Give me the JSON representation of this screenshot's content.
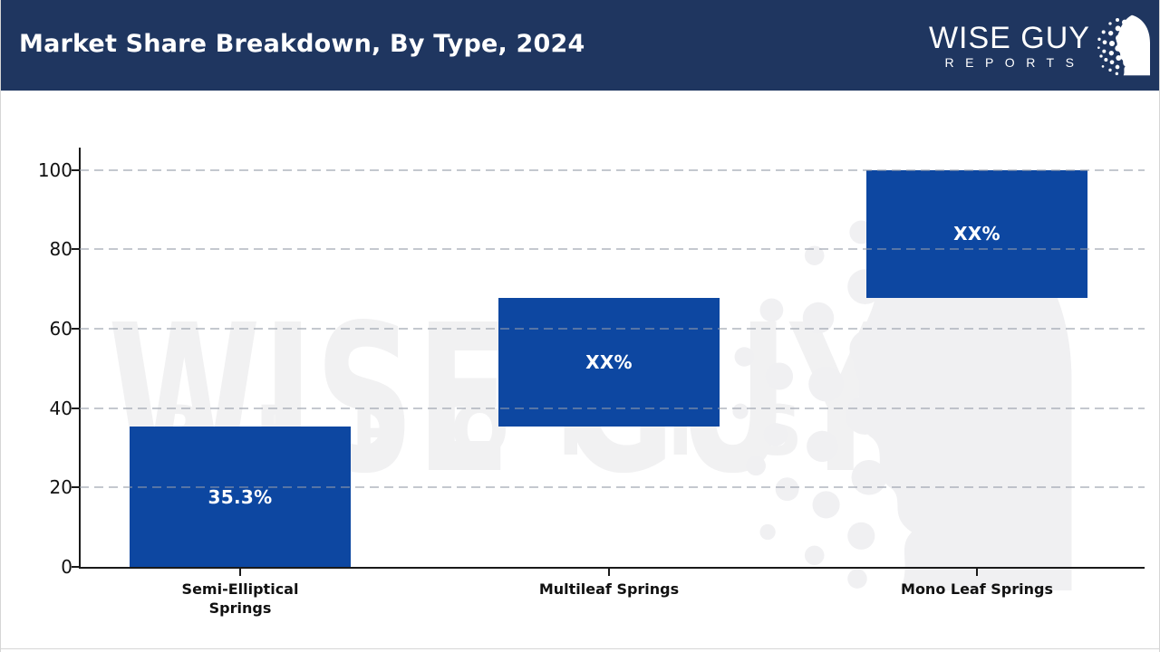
{
  "header": {
    "title": "Market Share Breakdown, By Type, 2024",
    "logo": {
      "line1": "WISE GUY",
      "line2": "REPORTS",
      "icon": "dotted-head-profile"
    }
  },
  "watermark": {
    "line1": "WISE GUY",
    "line2": "REPORTS",
    "icon": "dotted-head-profile"
  },
  "chart_data": {
    "type": "bar",
    "subtype": "waterfall",
    "title": "Market Share Breakdown, By Type, 2024",
    "categories": [
      "Semi-Elliptical\nSprings",
      "Multileaf Springs",
      "Mono Leaf Springs"
    ],
    "segments": [
      {
        "category": "Semi-Elliptical Springs",
        "start": 0,
        "end": 35.3,
        "value": 35.3,
        "label": "35.3%"
      },
      {
        "category": "Multileaf Springs",
        "start": 35.3,
        "end": 67.7,
        "value": 32.4,
        "label": "XX%"
      },
      {
        "category": "Mono Leaf Springs",
        "start": 67.7,
        "end": 100,
        "value": 32.3,
        "label": "XX%"
      }
    ],
    "yticks": [
      0,
      20,
      40,
      60,
      80,
      100
    ],
    "ylim": [
      0,
      105.6
    ],
    "xlabel": "",
    "ylabel": "",
    "grid": true,
    "gridline_style": "dashed",
    "legend": "none",
    "colors": {
      "bar": "#0d47a1",
      "bar_label": "#ffffff",
      "header_bg": "#1f3660",
      "axis": "#1a1a1a",
      "gridline": "#c9ced6",
      "watermark": "#f1f1f2"
    }
  }
}
